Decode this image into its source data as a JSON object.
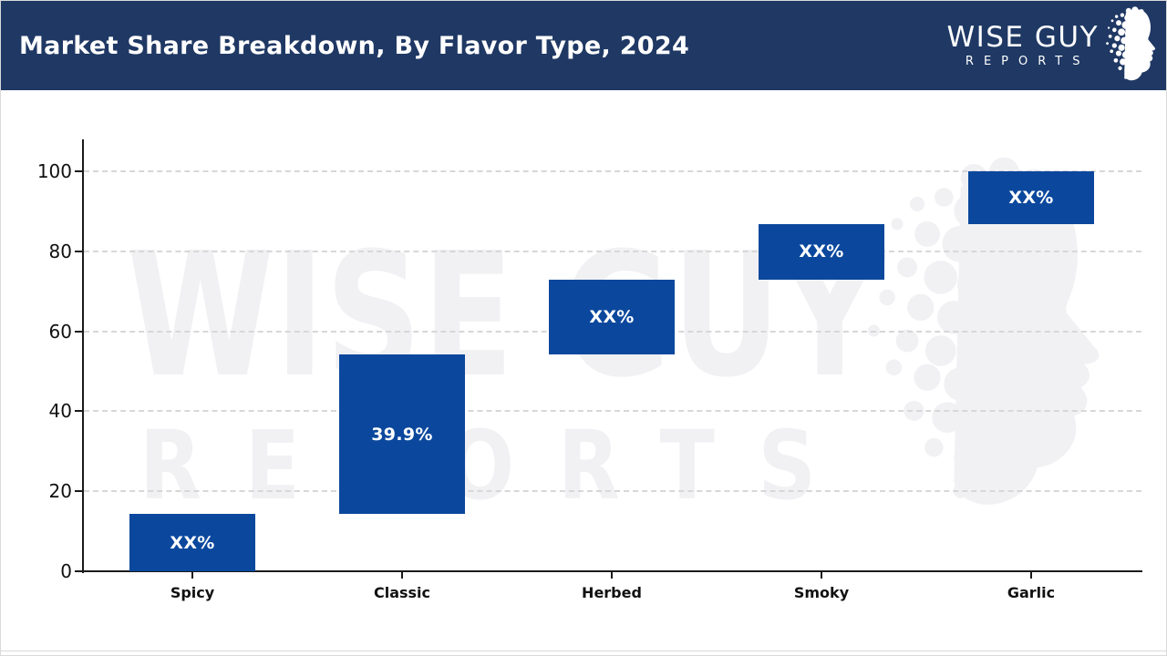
{
  "header": {
    "title": "Market Share Breakdown, By Flavor Type, 2024",
    "logo": {
      "line1": "WISE GUY",
      "line2": "REPORTS"
    }
  },
  "watermark": {
    "line1": "WISE GUY",
    "line2": "REPORTS"
  },
  "colors": {
    "header_bg": "#1F3864",
    "bar_fill": "#0B489D",
    "bar_label": "#FFFFFF",
    "gridline": "#D7D7D7",
    "axis": "#1A1A1A",
    "tick_label": "#111111",
    "watermark": "#F1F1F4",
    "hairline": "#D9D9D9"
  },
  "chart_data": {
    "type": "bar",
    "subtype": "waterfall",
    "title": "Market Share Breakdown, By Flavor Type, 2024",
    "categories": [
      "Spicy",
      "Classic",
      "Herbed",
      "Smoky",
      "Garlic"
    ],
    "bars": [
      {
        "category": "Spicy",
        "start": 0,
        "end": 14.3,
        "label": "XX%"
      },
      {
        "category": "Classic",
        "start": 14.3,
        "end": 54.2,
        "label": "39.9%",
        "value": 39.9
      },
      {
        "category": "Herbed",
        "start": 54.2,
        "end": 72.9,
        "label": "XX%"
      },
      {
        "category": "Smoky",
        "start": 72.9,
        "end": 86.9,
        "label": "XX%"
      },
      {
        "category": "Garlic",
        "start": 86.9,
        "end": 100,
        "label": "XX%"
      }
    ],
    "xlabel": "",
    "ylabel": "",
    "ylim": [
      0,
      100
    ],
    "yticks": [
      0,
      20,
      40,
      60,
      80,
      100
    ],
    "grid": "horizontal-dashed",
    "legend": "none"
  }
}
